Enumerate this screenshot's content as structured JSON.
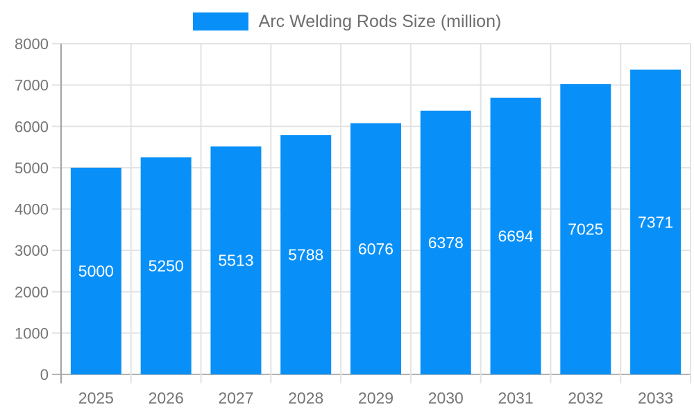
{
  "chart_data": {
    "type": "bar",
    "title": "Arc Welding Rods Size (million)",
    "categories": [
      "2025",
      "2026",
      "2027",
      "2028",
      "2029",
      "2030",
      "2031",
      "2032",
      "2033"
    ],
    "series": [
      {
        "name": "Arc Welding Rods Size (million)",
        "values": [
          5000,
          5250,
          5513,
          5788,
          6076,
          6378,
          6694,
          7025,
          7371
        ]
      }
    ],
    "xlabel": "",
    "ylabel": "",
    "ylim": [
      0,
      8000
    ],
    "yticks": [
      0,
      1000,
      2000,
      3000,
      4000,
      5000,
      6000,
      7000,
      8000
    ],
    "grid": true,
    "legend_position": "top",
    "value_labels": "inside-center"
  },
  "colors": {
    "bar": "#0890f8",
    "value_label": "#ffffff",
    "grid": "#e3e3e3",
    "axis": "#a3a3a3",
    "baseline": "#b3b3b3",
    "tick_text": "#757575",
    "legend_text": "#6e6e6e",
    "background": "#ffffff"
  }
}
